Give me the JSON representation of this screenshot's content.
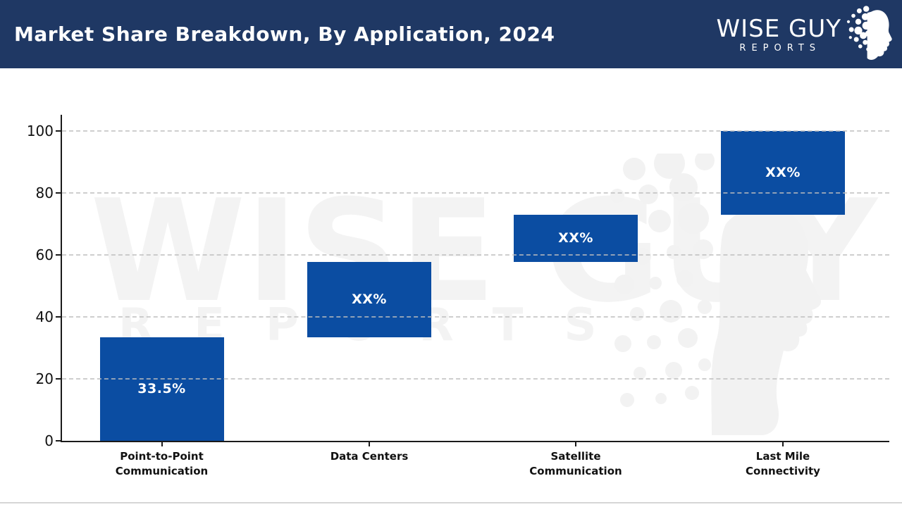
{
  "header": {
    "title": "Market Share Breakdown, By Application, 2024",
    "logo": {
      "name": "WISE GUY",
      "sub": "REPORTS"
    }
  },
  "watermark": {
    "text": "WISE GUY",
    "sub": "REPORTS"
  },
  "colors": {
    "header_bg": "#1f3864",
    "bar": "#0b4da2",
    "grid": "#c9c9c9",
    "axis": "#1a1a1a",
    "watermark": "#f3f3f3",
    "value_label": "#ffffff"
  },
  "chart_data": {
    "type": "bar",
    "subtype": "waterfall",
    "title": "Market Share Breakdown, By Application, 2024",
    "xlabel": "",
    "ylabel": "",
    "ylim": [
      0,
      105
    ],
    "yticks": [
      0,
      20,
      40,
      60,
      80,
      100
    ],
    "grid": "dashed-horizontal",
    "legend": "none",
    "categories": [
      "Point-to-Point Communication",
      "Data Centers",
      "Satellite Communication",
      "Last Mile Connectivity"
    ],
    "segments": [
      {
        "category_lines": [
          "Point-to-Point",
          "Communication"
        ],
        "value_label": "33.5%",
        "start": 0,
        "end": 33.5
      },
      {
        "category_lines": [
          "Data Centers"
        ],
        "value_label": "XX%",
        "start": 33.5,
        "end": 57.7
      },
      {
        "category_lines": [
          "Satellite",
          "Communication"
        ],
        "value_label": "XX%",
        "start": 57.7,
        "end": 73.0
      },
      {
        "category_lines": [
          "Last Mile",
          "Connectivity"
        ],
        "value_label": "XX%",
        "start": 73.0,
        "end": 100.0
      }
    ]
  }
}
